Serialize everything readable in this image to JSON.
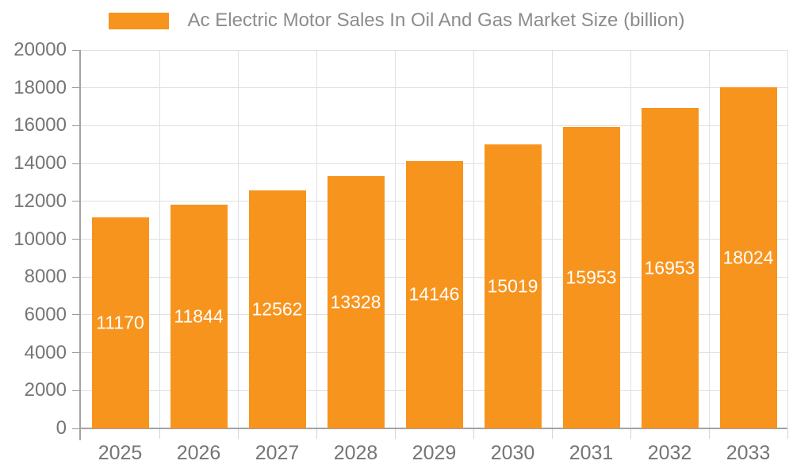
{
  "chart_data": {
    "type": "bar",
    "title": "Ac Electric Motor Sales In Oil And Gas Market Size (billion)",
    "legend_position": "top",
    "categories": [
      "2025",
      "2026",
      "2027",
      "2028",
      "2029",
      "2030",
      "2031",
      "2032",
      "2033"
    ],
    "values": [
      11170,
      11844,
      12562,
      13328,
      14146,
      15019,
      15953,
      16953,
      18024
    ],
    "xlabel": "",
    "ylabel": "",
    "ylim": [
      0,
      20000
    ],
    "ytick_step": 2000,
    "yticks": [
      0,
      2000,
      4000,
      6000,
      8000,
      10000,
      12000,
      14000,
      16000,
      18000,
      20000
    ],
    "grid": true,
    "colors": {
      "bar": "#F7941E",
      "bar_value_label": "#FFFFFF",
      "axis_tick_label": "#757575",
      "legend_label": "#8C8C8C",
      "gridline": "#E0E0E0",
      "axis_line": "#A3A3A3",
      "x_tick_mark": "#D4D4D4",
      "y_tick_mark": "#999999",
      "background": "#FFFFFF"
    }
  }
}
